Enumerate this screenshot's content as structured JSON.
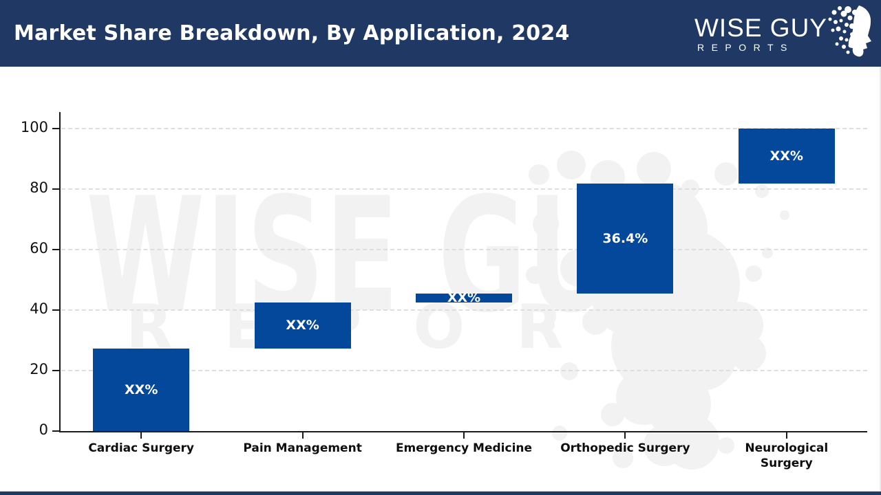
{
  "header": {
    "title": "Market Share Breakdown, By Application, 2024",
    "logo": {
      "line1": "WISE GUY",
      "line2": "REPORTS"
    }
  },
  "watermark": {
    "line1": "WISE GU",
    "line2": "REPORTS"
  },
  "colors": {
    "header_bg": "#1F3864",
    "footer_bg": "#1F3864",
    "title": "#FFFFFF",
    "bar": "#04489C",
    "bar_label": "#FFFFFF",
    "watermark": "#F2F2F3"
  },
  "chart_data": {
    "type": "bar",
    "subtype": "floating-waterfall",
    "title": "Market Share Breakdown, By Application, 2024",
    "categories": [
      "Cardiac Surgery",
      "Pain Management",
      "Emergency Medicine",
      "Orthopedic Surgery",
      "Neurological Surgery"
    ],
    "tick_labels": [
      "Cardiac Surgery",
      "Pain Management",
      "Emergency Medicine",
      "Orthopedic Surgery",
      "Neurological\nSurgery"
    ],
    "segments": [
      {
        "category": "Cardiac Surgery",
        "start": 0,
        "end": 27.3,
        "label": "XX%"
      },
      {
        "category": "Pain Management",
        "start": 27.3,
        "end": 42.5,
        "label": "XX%"
      },
      {
        "category": "Emergency Medicine",
        "start": 42.5,
        "end": 45.5,
        "label": "XX%"
      },
      {
        "category": "Orthopedic Surgery",
        "start": 45.5,
        "end": 81.9,
        "label": "36.4%"
      },
      {
        "category": "Neurological Surgery",
        "start": 81.9,
        "end": 100,
        "label": "XX%"
      }
    ],
    "yticks": [
      0,
      20,
      40,
      60,
      80,
      100
    ],
    "ylim": [
      0,
      105
    ],
    "xlabel": "",
    "ylabel": "",
    "grid": "horizontal-dashed",
    "legend": "none",
    "bar_color": "#04489C",
    "label_color": "#FFFFFF"
  }
}
